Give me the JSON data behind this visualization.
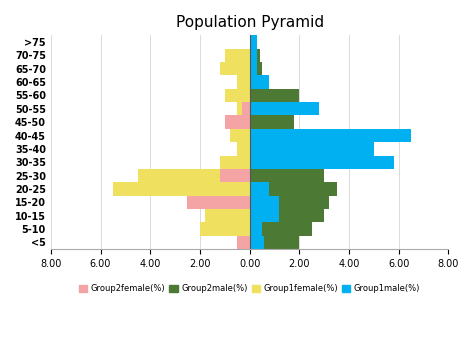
{
  "title": "Population Pyramid",
  "age_groups": [
    ">75",
    "70-75",
    "65-70",
    "60-65",
    "55-60",
    "50-55",
    "45-50",
    "40-45",
    "35-40",
    "30-35",
    "25-30",
    "20-25",
    "15-20",
    "10-15",
    "5-10",
    "<5"
  ],
  "group2_female": [
    0.0,
    0.0,
    0.0,
    0.0,
    0.0,
    0.3,
    1.0,
    0.0,
    0.0,
    0.0,
    1.2,
    0.0,
    2.5,
    0.0,
    0.0,
    0.5
  ],
  "group2_male": [
    0.2,
    0.4,
    0.5,
    0.6,
    2.0,
    1.5,
    1.8,
    2.0,
    2.2,
    2.5,
    3.0,
    3.5,
    3.2,
    3.0,
    2.5,
    2.0
  ],
  "group1_female": [
    0.0,
    1.0,
    1.2,
    0.5,
    1.0,
    0.5,
    0.5,
    0.8,
    0.5,
    1.2,
    4.5,
    5.5,
    2.0,
    1.8,
    2.0,
    0.0
  ],
  "group1_male": [
    0.3,
    0.3,
    0.3,
    0.8,
    0.0,
    2.8,
    0.0,
    6.5,
    5.0,
    5.8,
    0.0,
    0.8,
    1.2,
    1.2,
    0.5,
    0.6
  ],
  "xlim": 8.0,
  "colors": {
    "group2_female": "#F4A4A4",
    "group2_male": "#4C7A34",
    "group1_female": "#F0E060",
    "group1_male": "#00B0F0"
  },
  "legend_labels": [
    "Group2female(%)",
    "Group2male(%)",
    "Group1female(%)",
    "Group1male(%)"
  ],
  "background_color": "#ffffff"
}
